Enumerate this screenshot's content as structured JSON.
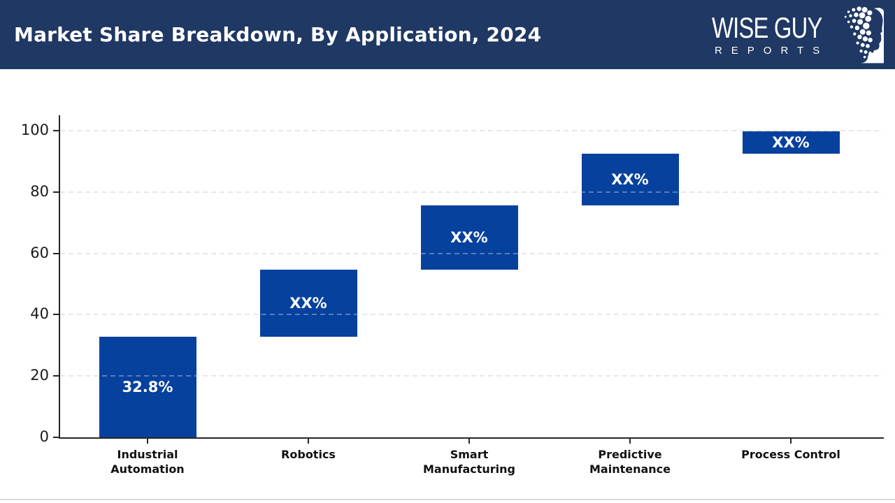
{
  "header": {
    "title": "Market Share Breakdown, By Application, 2024"
  },
  "logo": {
    "line1": "WISE GUY",
    "line2": "REPORTS"
  },
  "watermark": {
    "line1": "WISE GUY",
    "line2": "REPORTS"
  },
  "colors": {
    "header_bg": "#1f3864",
    "bar": "#07419e",
    "bar_label": "#ffffff",
    "grid": "#dcdcdc",
    "axis": "#262626",
    "tick_label": "#1a1a1a",
    "category_label": "#111111",
    "watermark": "#f1f2f5",
    "bottom_rule": "#d9d9d9"
  },
  "chart_data": {
    "type": "bar",
    "subtype": "floating-waterfall",
    "title": "Market Share Breakdown, By Application, 2024",
    "categories": [
      "Industrial\nAutomation",
      "Robotics",
      "Smart\nManufacturing",
      "Predictive\nMaintenance",
      "Process Control"
    ],
    "segments": [
      [
        0,
        32.8
      ],
      [
        32.8,
        54.6
      ],
      [
        54.6,
        75.6
      ],
      [
        75.6,
        92.5
      ],
      [
        92.5,
        99.7
      ]
    ],
    "bar_labels": [
      "32.8%",
      "XX%",
      "XX%",
      "XX%",
      "XX%"
    ],
    "ylim": [
      0,
      100
    ],
    "yticks": [
      0,
      20,
      40,
      60,
      80,
      100
    ],
    "xlabel": "",
    "ylabel": "",
    "grid": "horizontal-dashed",
    "legend": "none"
  }
}
